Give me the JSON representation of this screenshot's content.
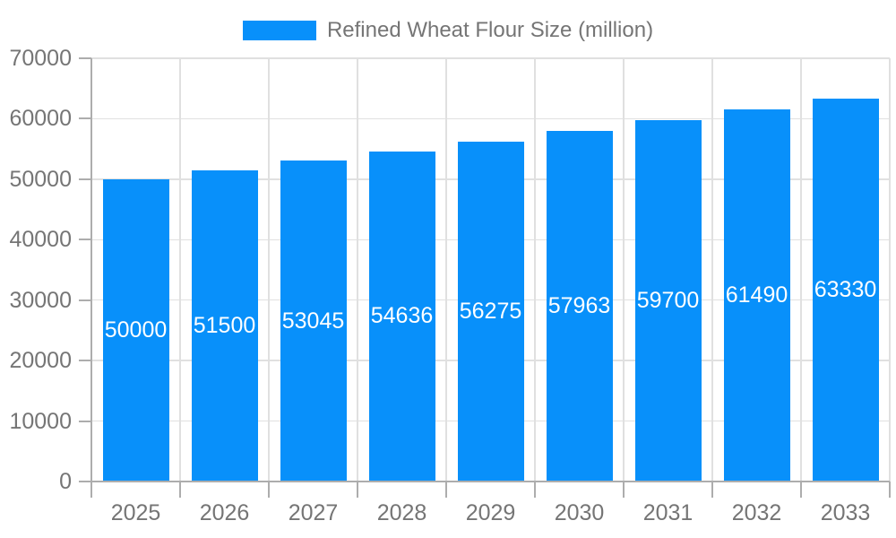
{
  "legend": {
    "label": "Refined Wheat Flour Size (million)"
  },
  "colors": {
    "bar": "#0890FA",
    "axis_text": "#757575",
    "grid_line": "#e0e0e0",
    "axis_line": "#adadad",
    "value_label": "#ffffff",
    "background": "#ffffff"
  },
  "chart_data": {
    "type": "bar",
    "title": "",
    "xlabel": "",
    "ylabel": "",
    "categories": [
      "2025",
      "2026",
      "2027",
      "2028",
      "2029",
      "2030",
      "2031",
      "2032",
      "2033"
    ],
    "series": [
      {
        "name": "Refined Wheat Flour Size (million)",
        "values": [
          50000,
          51500,
          53045,
          54636,
          56275,
          57963,
          59700,
          61490,
          63330
        ]
      }
    ],
    "value_labels": [
      "50000",
      "51500",
      "53045",
      "54636",
      "56275",
      "57963",
      "59700",
      "61490",
      "63330"
    ],
    "value_labels_inside_bars": true,
    "ylim": [
      0,
      70000
    ],
    "ytick_step": 10000,
    "ytick_labels": [
      "0",
      "10000",
      "20000",
      "30000",
      "40000",
      "50000",
      "60000",
      "70000"
    ],
    "grid": true,
    "legend_position": "top-center"
  }
}
